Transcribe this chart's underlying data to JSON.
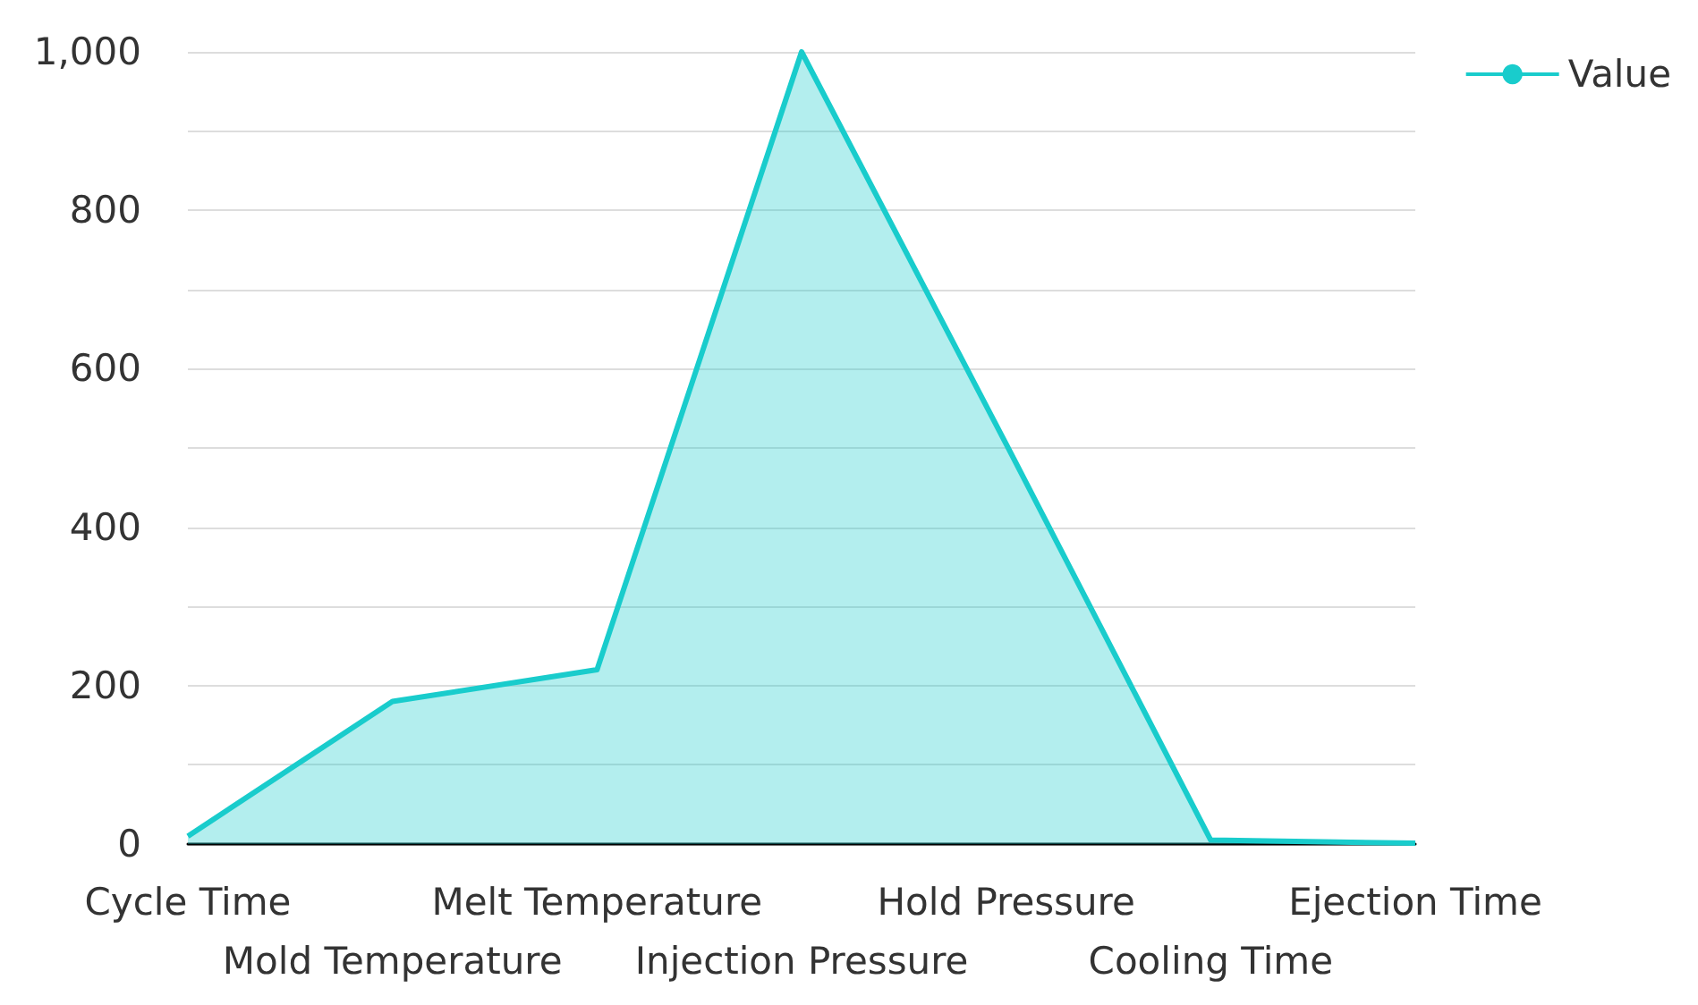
{
  "chart_data": {
    "type": "area",
    "categories": [
      "Cycle Time",
      "Mold Temperature",
      "Melt Temperature",
      "Injection Pressure",
      "Hold Pressure",
      "Cooling Time",
      "Ejection Time"
    ],
    "series": [
      {
        "name": "Value",
        "color": "#19cccc",
        "values": [
          10,
          180,
          220,
          1000,
          505,
          5,
          1
        ]
      }
    ],
    "ylim": [
      0,
      1000
    ],
    "yticks": [
      0,
      {
        "value": 100,
        "label": null
      },
      200,
      {
        "value": 300,
        "label": null
      },
      400,
      {
        "value": 500,
        "label": null
      },
      600,
      {
        "value": 700,
        "label": null
      },
      800,
      {
        "value": 900,
        "label": null
      },
      {
        "value": 1000,
        "label": "1,000"
      }
    ],
    "grid": "y",
    "legend": "top right",
    "marker": "none"
  }
}
